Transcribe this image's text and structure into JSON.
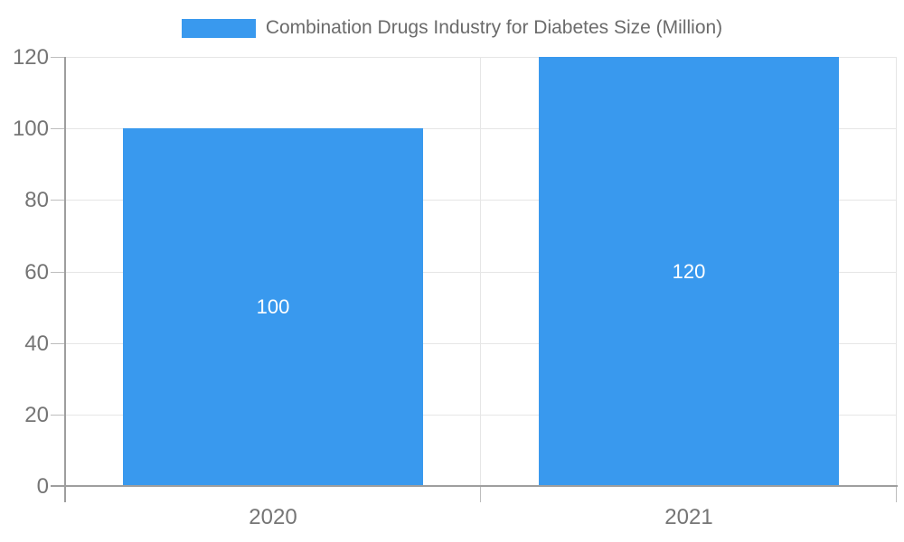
{
  "legend": {
    "label": "Combination Drugs Industry for Diabetes Size (Million)",
    "swatch_color": "#3999EE"
  },
  "chart_data": {
    "type": "bar",
    "title": "Combination Drugs Industry for Diabetes Size (Million)",
    "categories": [
      "2020",
      "2021"
    ],
    "values": [
      100,
      120
    ],
    "value_labels": [
      "100",
      "120"
    ],
    "xlabel": "",
    "ylabel": "",
    "ylim": [
      0,
      120
    ],
    "yticks": [
      0,
      20,
      40,
      60,
      80,
      100,
      120
    ],
    "grid": true,
    "legend_position": "top",
    "bar_color": "#3999EE",
    "value_label_color": "#ffffff",
    "axis_color": "#9e9e9e",
    "gridline_color": "#e6e6e6",
    "tick_color": "#bdbdbd",
    "tick_label_color": "#757575"
  }
}
